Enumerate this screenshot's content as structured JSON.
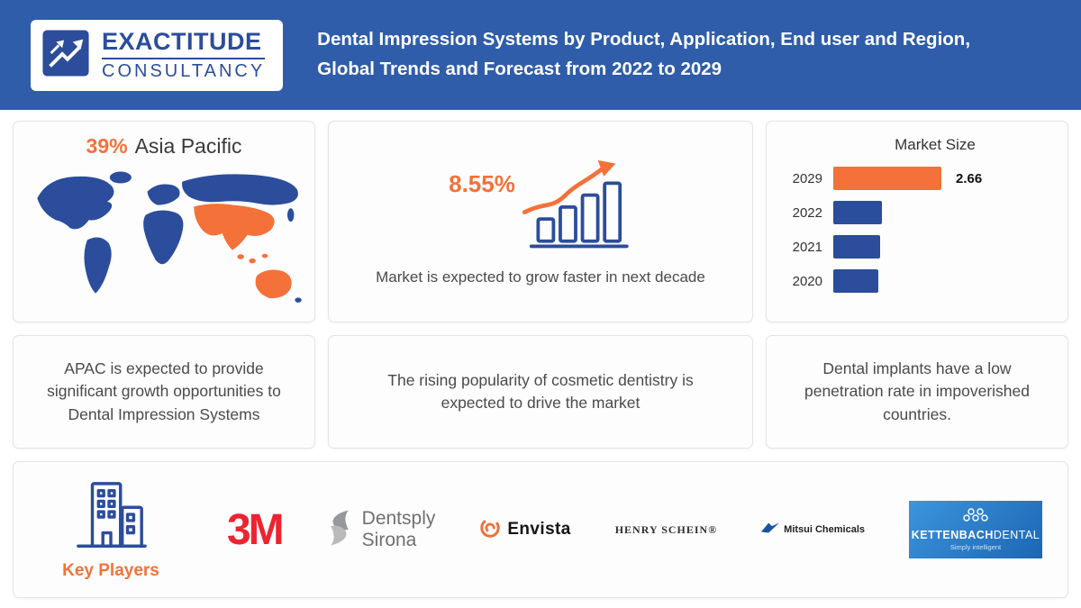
{
  "header": {
    "brand_line1": "EXACTITUDE",
    "brand_line2": "CONSULTANCY",
    "title_line1": "Dental Impression Systems by Product, Application, End user and Region,",
    "title_line2": "Global Trends and Forecast from  2022 to 2029"
  },
  "cards": {
    "asia_pacific": {
      "stat": "39%",
      "label": "Asia Pacific"
    },
    "growth": {
      "stat": "8.55%",
      "caption": "Market is expected to grow faster in next decade"
    },
    "market_size": {
      "title": "Market Size"
    },
    "insight_apac": "APAC is expected to provide significant growth opportunities to Dental Impression Systems",
    "insight_cosmetic": "The rising popularity of cosmetic dentistry is expected to drive the market",
    "insight_implants": "Dental implants have a low penetration rate in impoverished countries."
  },
  "key_players": {
    "label": "Key Players",
    "logos": {
      "m3": "3M",
      "dentsply_line1": "Dentsply",
      "dentsply_line2": "Sirona",
      "envista": "Envista",
      "henry_schein": "HENRY SCHEIN®",
      "mitsui": "Mitsui Chemicals",
      "kettenbach_line1": "KETTENBACH",
      "kettenbach_line2": "DENTAL",
      "kettenbach_tagline": "Simply intelligent"
    }
  },
  "chart_data": {
    "type": "bar",
    "orientation": "horizontal",
    "title": "Market Size",
    "categories": [
      "2029",
      "2022",
      "2021",
      "2020"
    ],
    "values": [
      2.66,
      1.2,
      1.15,
      1.1
    ],
    "value_labels": [
      "2.66",
      "",
      "",
      ""
    ],
    "highlight_index": 0,
    "legend": false,
    "grid": false,
    "colors": {
      "highlight": "#f4713a",
      "default": "#2b4d9b"
    }
  },
  "colors": {
    "header_bg": "#2f5da9",
    "brand_blue": "#2b4d9b",
    "accent_orange": "#f4713a"
  }
}
